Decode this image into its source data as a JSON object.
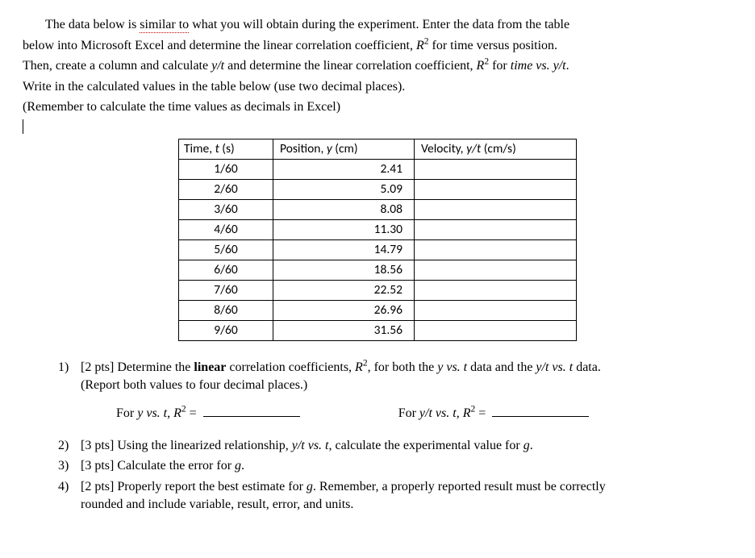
{
  "intro": {
    "line1a": "The data below is ",
    "line1b_underlined": "similar to",
    "line1c": " what you will obtain during the experiment. Enter the data from the table",
    "line2a": "below into Microsoft Excel and determine the linear correlation coefficient, ",
    "line2b_R": "R",
    "line2c_sup": "2",
    "line2d": " for time versus position.",
    "line3a": "Then, create a column and calculate ",
    "line3b_yt": "y/t",
    "line3c": " and determine the linear correlation coefficient, ",
    "line3d_R": "R",
    "line3e_sup": "2",
    "line3f": " for ",
    "line3g_tv": "time vs. y/t",
    "line3h": ".",
    "line4": "Write in the calculated values in the table below (use two decimal places).",
    "line5": "(Remember to calculate the time values as decimals in Excel)"
  },
  "table": {
    "headers": {
      "time_a": "Time, ",
      "time_b_i": "t",
      "time_c": " (s)",
      "pos_a": "Position, ",
      "pos_b_i": "y",
      "pos_c": " (cm)",
      "vel_a": "Velocity, ",
      "vel_b_i": "y/t",
      "vel_c": " (cm/s)"
    },
    "rows": [
      {
        "t": "1/60",
        "y": "2.41",
        "v": ""
      },
      {
        "t": "2/60",
        "y": "5.09",
        "v": ""
      },
      {
        "t": "3/60",
        "y": "8.08",
        "v": ""
      },
      {
        "t": "4/60",
        "y": "11.30",
        "v": ""
      },
      {
        "t": "5/60",
        "y": "14.79",
        "v": ""
      },
      {
        "t": "6/60",
        "y": "18.56",
        "v": ""
      },
      {
        "t": "7/60",
        "y": "22.52",
        "v": ""
      },
      {
        "t": "8/60",
        "y": "26.96",
        "v": ""
      },
      {
        "t": "9/60",
        "y": "31.56",
        "v": ""
      }
    ]
  },
  "q1": {
    "num": "1)",
    "pts": "[2 pts] Determine the ",
    "bold": "linear",
    "rest_a": " correlation coefficients, ",
    "R": "R",
    "sup": "2",
    "rest_b": ", for both the ",
    "yvst": "y vs. t",
    "rest_c": " data and the ",
    "ytvst": "y/t vs. t",
    "rest_d": " data.",
    "note": "(Report both values to four decimal places.)",
    "ans1_a": "For ",
    "ans1_b_i": "y vs. t",
    "ans1_c": ", ",
    "ans1_R": "R",
    "ans1_sup": "2",
    "ans1_eq": " = ",
    "ans2_a": "For ",
    "ans2_b_i": "y/t vs. t",
    "ans2_c": ", ",
    "ans2_R": "R",
    "ans2_sup": "2",
    "ans2_eq": " = "
  },
  "q2": {
    "num": "2)",
    "a": "[3 pts] Using the linearized relationship, ",
    "b_i": "y/t vs. t",
    "c": ", calculate the experimental value for ",
    "g": "g",
    "d": "."
  },
  "q3": {
    "num": "3)",
    "a": "[3 pts] Calculate the error for ",
    "g": "g",
    "b": "."
  },
  "q4": {
    "num": "4)",
    "a": "[2 pts] Properly report the best estimate for ",
    "g": "g",
    "b": ".  Remember, a properly reported result must be correctly",
    "c": "rounded and include variable, result, error, and units."
  }
}
